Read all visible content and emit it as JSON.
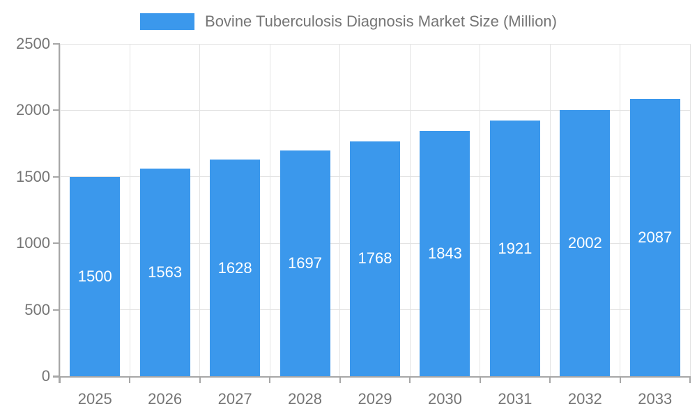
{
  "chart_data": {
    "type": "bar",
    "title": "Bovine Tuberculosis Diagnosis Market Size (Million)",
    "categories": [
      "2025",
      "2026",
      "2027",
      "2028",
      "2029",
      "2030",
      "2031",
      "2032",
      "2033"
    ],
    "series": [
      {
        "name": "Bovine Tuberculosis Diagnosis Market Size (Million)",
        "values": [
          1500,
          1563,
          1628,
          1697,
          1768,
          1843,
          1921,
          2002,
          2087
        ]
      }
    ],
    "xlabel": "",
    "ylabel": "",
    "ylim": [
      0,
      2500
    ],
    "yticks": [
      0,
      500,
      1000,
      1500,
      2000,
      2500
    ],
    "grid": true,
    "legend_position": "top-center",
    "bar_color": "#3b98ec",
    "value_label_color": "#ffffff",
    "axis_text_color": "#757575",
    "grid_color": "#e3e3e3",
    "axis_line_color": "#a7a7a7",
    "background_color": "#ffffff"
  }
}
